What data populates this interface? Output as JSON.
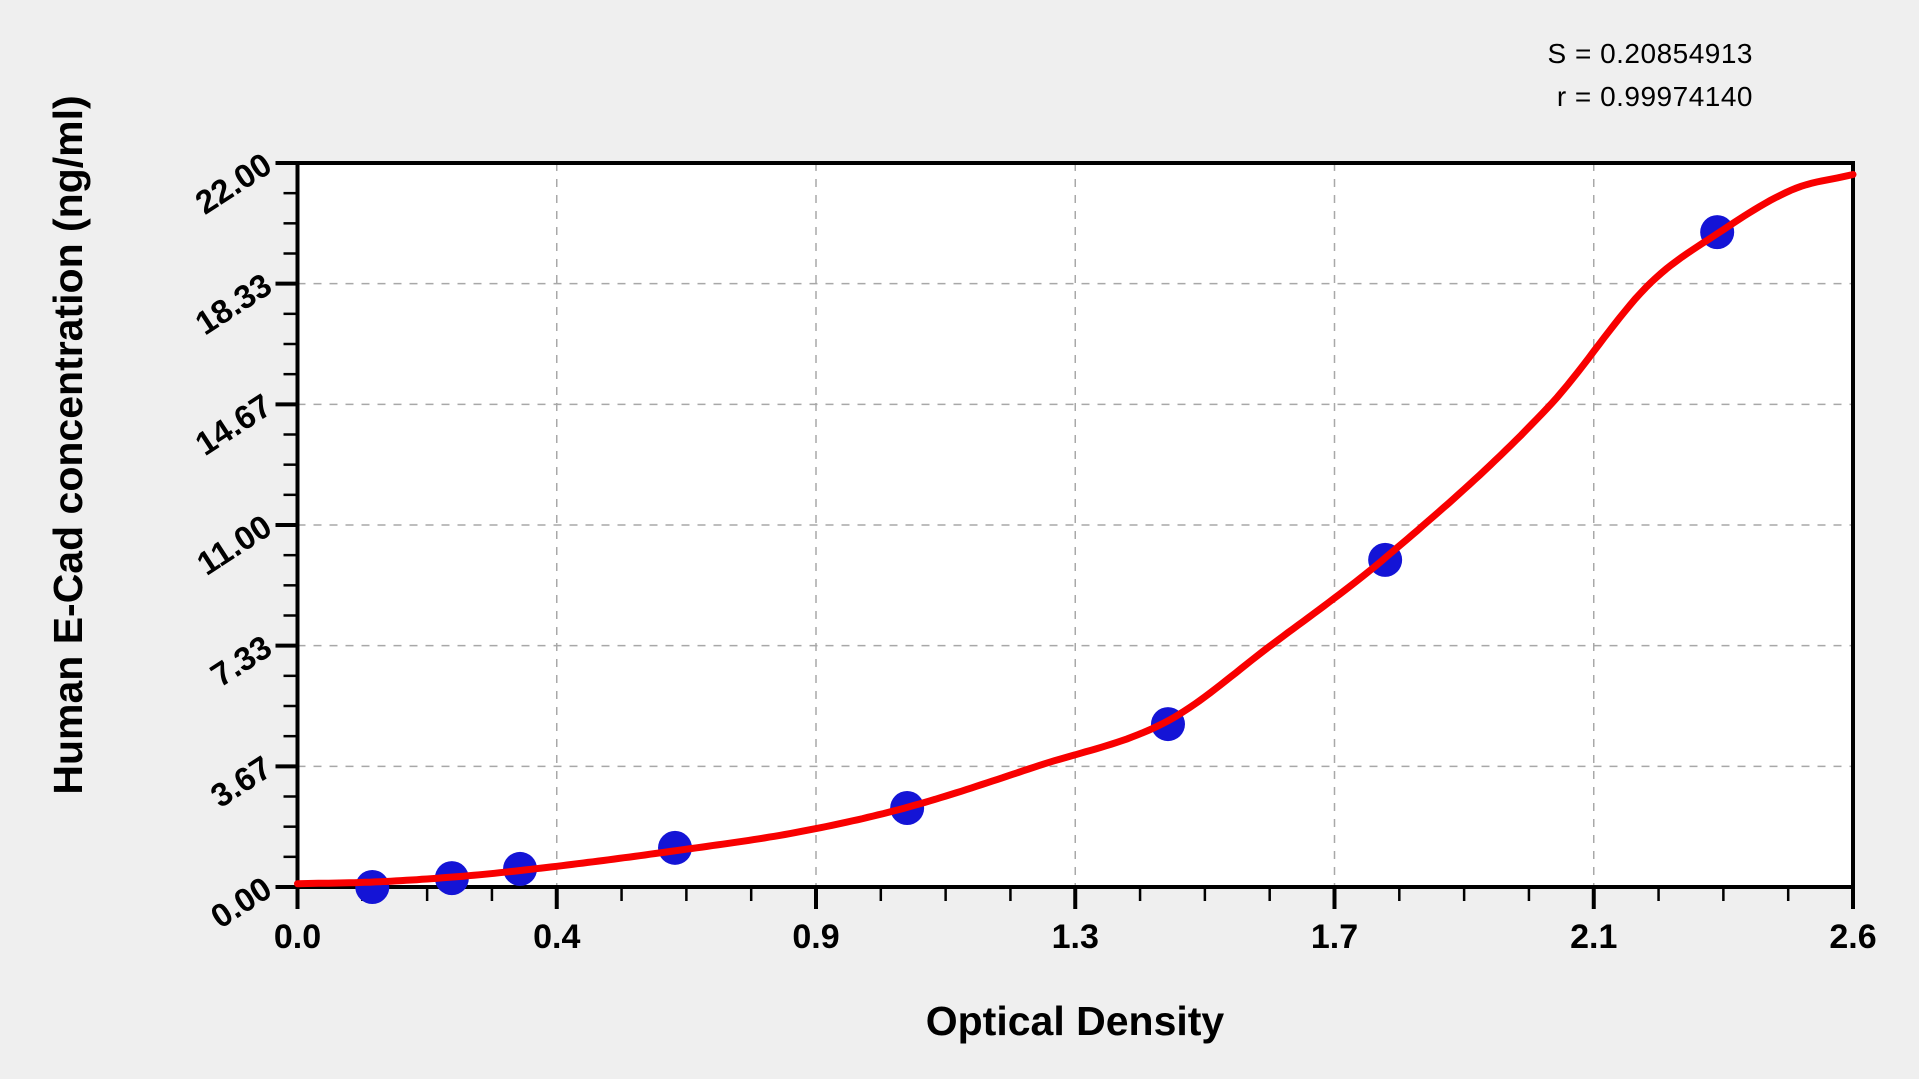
{
  "page": {
    "background_color": "#efefef",
    "plot_background_color": "#ffffff"
  },
  "chart_data": {
    "type": "scatter",
    "title": "",
    "xlabel": "Optical Density",
    "ylabel": "Human E-Cad concentration (ng/ml)",
    "stats": {
      "s": "S = 0.20854913",
      "r": "r = 0.99974140"
    },
    "xlim": [
      0,
      2.6
    ],
    "ylim": [
      0,
      22
    ],
    "x_tick_labels": [
      "0.0",
      "0.4",
      "0.9",
      "1.3",
      "1.7",
      "2.1",
      "2.6"
    ],
    "y_tick_labels": [
      "0.00",
      "3.67",
      "7.33",
      "11.00",
      "14.67",
      "18.33",
      "22.00"
    ],
    "minor_divisions_per_major": 4,
    "grid": {
      "shown": true,
      "style": "dashed",
      "color": "#a8a8a8",
      "at": "major-ticks"
    },
    "legend_position": "none",
    "axis_color": "#000000",
    "series": [
      {
        "name": "standard-points",
        "type": "scatter",
        "marker": "circle",
        "marker_color": "#1414d6",
        "points": [
          {
            "od": 0.125,
            "conc": 0.0
          },
          {
            "od": 0.258,
            "conc": 0.27
          },
          {
            "od": 0.372,
            "conc": 0.55
          },
          {
            "od": 0.631,
            "conc": 1.19
          },
          {
            "od": 1.019,
            "conc": 2.4
          },
          {
            "od": 1.455,
            "conc": 4.95
          },
          {
            "od": 1.818,
            "conc": 9.94
          },
          {
            "od": 2.373,
            "conc": 19.9
          }
        ]
      },
      {
        "name": "fitted-curve",
        "type": "line",
        "line_color": "#f80000",
        "points": [
          {
            "od": 0.0,
            "conc": 0.1
          },
          {
            "od": 0.125,
            "conc": 0.15
          },
          {
            "od": 0.258,
            "conc": 0.3
          },
          {
            "od": 0.372,
            "conc": 0.5
          },
          {
            "od": 0.631,
            "conc": 1.1
          },
          {
            "od": 0.84,
            "conc": 1.68
          },
          {
            "od": 1.019,
            "conc": 2.42
          },
          {
            "od": 1.236,
            "conc": 3.67
          },
          {
            "od": 1.455,
            "conc": 5.05
          },
          {
            "od": 1.626,
            "conc": 7.33
          },
          {
            "od": 1.818,
            "conc": 10.0
          },
          {
            "od": 2.095,
            "conc": 14.67
          },
          {
            "od": 2.26,
            "conc": 18.33
          },
          {
            "od": 2.373,
            "conc": 19.85
          },
          {
            "od": 2.5,
            "conc": 21.2
          },
          {
            "od": 2.6,
            "conc": 21.65
          }
        ]
      }
    ]
  }
}
